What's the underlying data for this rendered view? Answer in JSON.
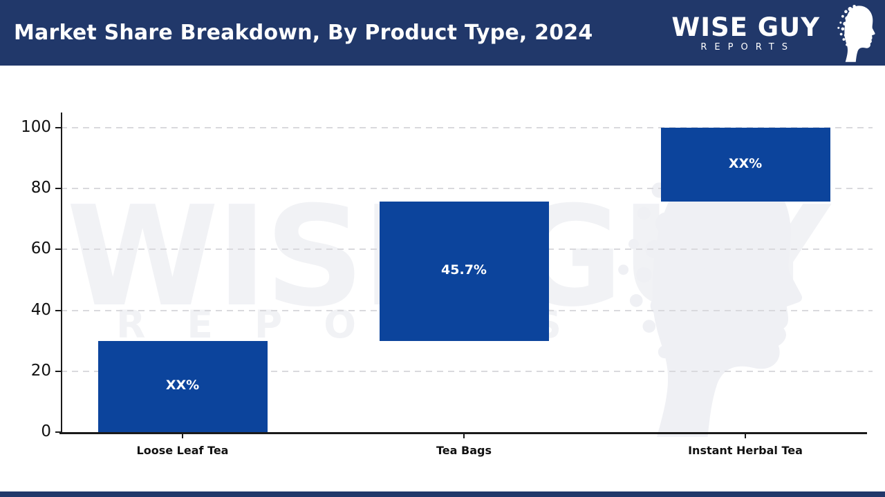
{
  "header": {
    "title": "Market Share Breakdown, By Product Type, 2024",
    "logo_line1": "WISE GUY",
    "logo_line2": "REPORTS",
    "bg_color": "#21386a"
  },
  "watermark": {
    "line1": "WISE GUY",
    "line2": "REPORTS"
  },
  "chart_data": {
    "type": "bar",
    "variant": "floating-waterfall",
    "title": "Market Share Breakdown, By Product Type, 2024",
    "categories": [
      "Loose Leaf Tea",
      "Tea Bags",
      "Instant Herbal Tea"
    ],
    "bars": [
      {
        "category": "Loose Leaf Tea",
        "start": 0,
        "end": 30,
        "label": "XX%"
      },
      {
        "category": "Tea Bags",
        "start": 30,
        "end": 75.7,
        "label": "45.7%"
      },
      {
        "category": "Instant Herbal Tea",
        "start": 75.7,
        "end": 100,
        "label": "XX%"
      }
    ],
    "y_ticks": [
      0,
      20,
      40,
      60,
      80,
      100
    ],
    "ylim": [
      0,
      105
    ],
    "xlabel": "",
    "ylabel": "",
    "grid": "horizontal-dashed",
    "legend": "none",
    "bar_color": "#0c449c",
    "bar_label_color": "#ffffff"
  }
}
